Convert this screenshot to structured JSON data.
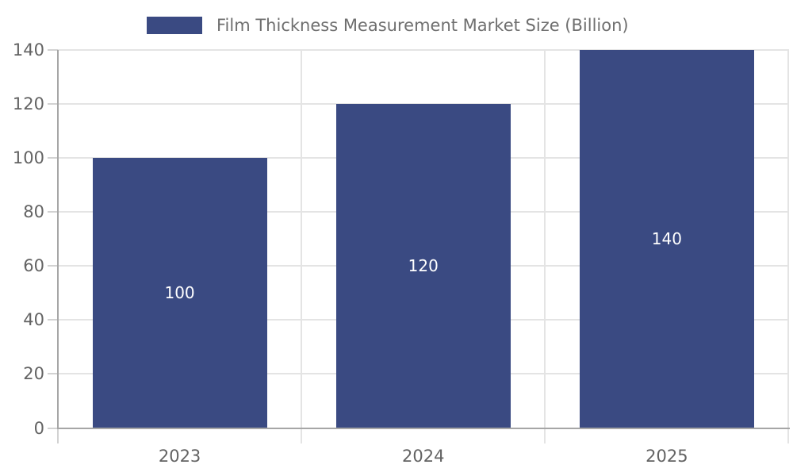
{
  "chart_data": {
    "type": "bar",
    "title": "Film Thickness Measurement Market Size (Billion)",
    "categories": [
      "2023",
      "2024",
      "2025"
    ],
    "values": [
      100,
      120,
      140
    ],
    "bar_labels": [
      "100",
      "120",
      "140"
    ],
    "xlabel": "",
    "ylabel": "",
    "ylim": [
      0,
      140
    ],
    "yticks": [
      0,
      20,
      40,
      60,
      80,
      100,
      120,
      140
    ],
    "grid": true,
    "legend_position": "top"
  },
  "colors": {
    "bar": "#3A4A82",
    "bar_label": "#FFFFFF",
    "legend_text": "#6F6F6F",
    "axis_text": "#636363",
    "grid_line": "#E4E4E4",
    "axis_line": "#A6A6A6",
    "tick_mark": "#D2D2D2",
    "background": "#FFFFFF"
  }
}
